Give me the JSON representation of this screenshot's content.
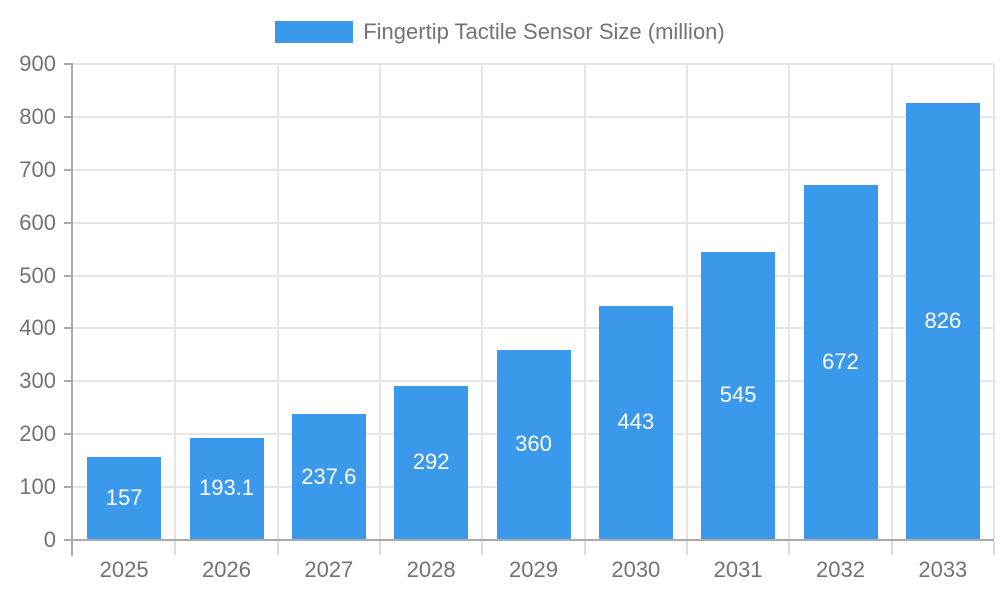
{
  "chart_data": {
    "type": "bar",
    "title": "Fingertip Tactile Sensor Size (million)",
    "legend_entries": [
      "Fingertip Tactile Sensor Size (million)"
    ],
    "legend_position": "top-center",
    "categories": [
      "2025",
      "2026",
      "2027",
      "2028",
      "2029",
      "2030",
      "2031",
      "2032",
      "2033"
    ],
    "values": [
      157,
      193.1,
      237.6,
      292,
      360,
      443,
      545,
      672,
      826
    ],
    "value_labels": [
      "157",
      "193.1",
      "237.6",
      "292",
      "360",
      "443",
      "545",
      "672",
      "826"
    ],
    "xlabel": "",
    "ylabel": "",
    "ylim": [
      0,
      900
    ],
    "ytick_step": 100,
    "ytick_labels": [
      "0",
      "100",
      "200",
      "300",
      "400",
      "500",
      "600",
      "700",
      "800",
      "900"
    ],
    "grid": true,
    "colors": {
      "bar": "#3B99EC",
      "gridline": "#E5E5E5",
      "axis_line": "#AAAAAA",
      "category_tick": "#DCDCDC",
      "tick_label": "#737373",
      "data_label": "#FFFFFF",
      "background": "#FFFFFF"
    }
  }
}
